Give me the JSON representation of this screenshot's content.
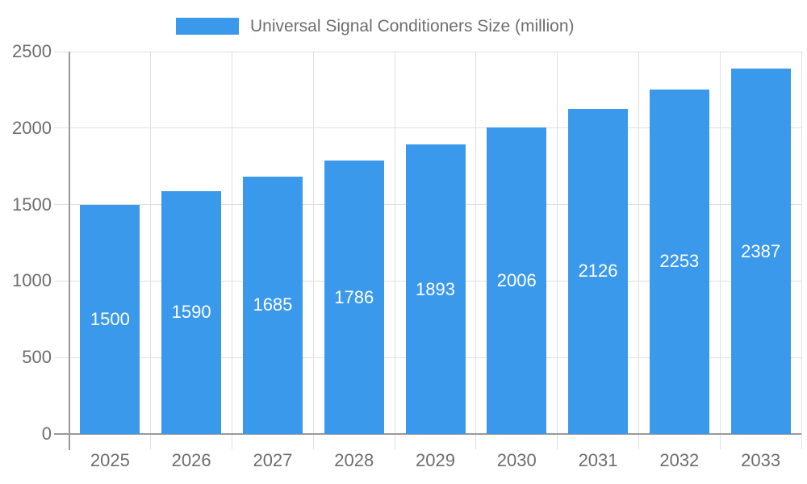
{
  "legend": {
    "label": "Universal Signal Conditioners Size (million)"
  },
  "colors": {
    "bar": "#3b99ec",
    "grid": "#e0e0e0",
    "axis": "#999999",
    "tick_label": "#6e6e6e",
    "value_label": "#ffffff",
    "background": "#ffffff"
  },
  "chart_data": {
    "type": "bar",
    "title": "Universal Signal Conditioners Size (million)",
    "categories": [
      "2025",
      "2026",
      "2027",
      "2028",
      "2029",
      "2030",
      "2031",
      "2032",
      "2033"
    ],
    "values": [
      1500,
      1590,
      1685,
      1786,
      1893,
      2006,
      2126,
      2253,
      2387
    ],
    "xlabel": "",
    "ylabel": "",
    "ylim": [
      0,
      2500
    ],
    "yticks": [
      0,
      500,
      1000,
      1500,
      2000,
      2500
    ],
    "grid": true,
    "legend_position": "top",
    "value_label_position": "inside-center"
  }
}
